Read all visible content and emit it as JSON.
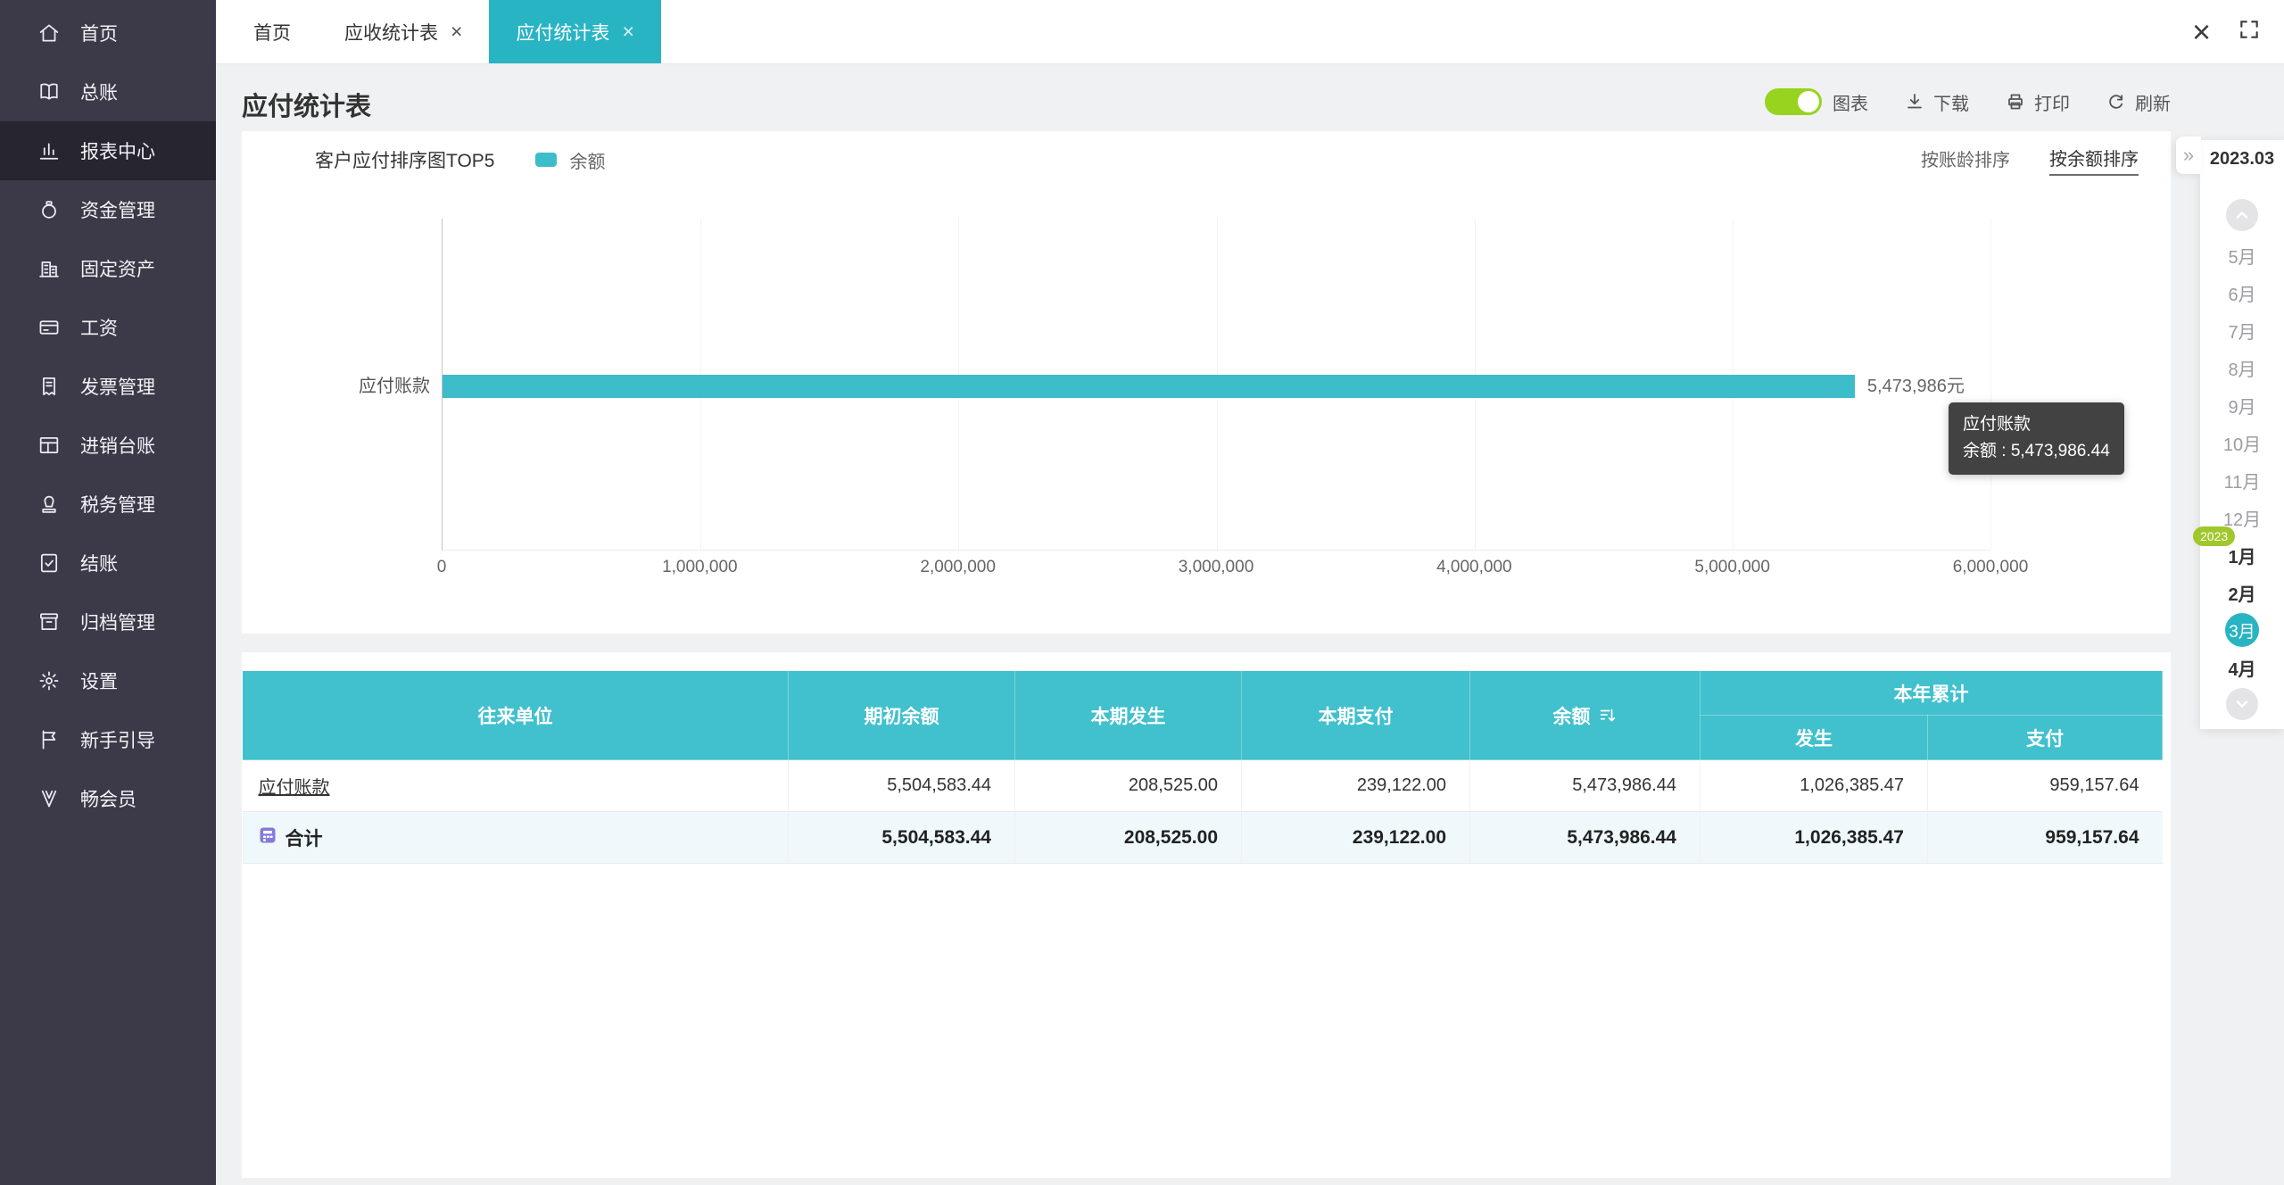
{
  "colors": {
    "accent_teal": "#29b4c4",
    "bar_teal": "#3dbcca",
    "header_teal": "#41c0cd",
    "toggle_green": "#97d31f",
    "sidebar_bg": "#3c3a49",
    "sidebar_active": "#272530",
    "total_row_bg": "#eff8fa",
    "tooltip_bg": "#424242",
    "year_badge_green": "#a0c82c"
  },
  "sidebar": {
    "items": [
      {
        "label": "首页",
        "icon": "home-icon"
      },
      {
        "label": "总账",
        "icon": "general-ledger-icon"
      },
      {
        "label": "报表中心",
        "icon": "report-center-icon",
        "active": true
      },
      {
        "label": "资金管理",
        "icon": "fund-management-icon"
      },
      {
        "label": "固定资产",
        "icon": "fixed-assets-icon"
      },
      {
        "label": "工资",
        "icon": "payroll-icon"
      },
      {
        "label": "发票管理",
        "icon": "invoice-management-icon"
      },
      {
        "label": "进销台账",
        "icon": "purchase-sales-ledger-icon"
      },
      {
        "label": "税务管理",
        "icon": "tax-management-icon"
      },
      {
        "label": "结账",
        "icon": "closing-icon"
      },
      {
        "label": "归档管理",
        "icon": "archive-management-icon"
      },
      {
        "label": "设置",
        "icon": "settings-icon"
      },
      {
        "label": "新手引导",
        "icon": "beginner-guide-icon"
      },
      {
        "label": "畅会员",
        "icon": "membership-icon"
      }
    ]
  },
  "tabbar": {
    "tabs": [
      {
        "label": "首页",
        "closable": false,
        "active": false
      },
      {
        "label": "应收统计表",
        "closable": true,
        "active": false
      },
      {
        "label": "应付统计表",
        "closable": true,
        "active": true
      }
    ],
    "close_glyph": "×",
    "window_close": "×"
  },
  "header": {
    "title": "应付统计表",
    "toggle_label": "图表",
    "download_label": "下载",
    "print_label": "打印",
    "refresh_label": "刷新"
  },
  "chart": {
    "panel_title": "客户应付排序图TOP5",
    "legend_label": "余额",
    "sort_age": "按账龄排序",
    "sort_amount": "按余额排序",
    "category": "应付账款",
    "bar_label": "5,473,986元",
    "tooltip_title": "应付账款",
    "tooltip_value": "余额 : 5,473,986.44"
  },
  "chart_data": {
    "type": "bar",
    "orientation": "horizontal",
    "title": "客户应付排序图TOP5",
    "categories": [
      "应付账款"
    ],
    "series": [
      {
        "name": "余额",
        "values": [
          5473986.44
        ]
      }
    ],
    "values": [
      5473986.44
    ],
    "xlim": [
      0,
      6000000
    ],
    "x_ticks": [
      "0",
      "1,000,000",
      "2,000,000",
      "3,000,000",
      "4,000,000",
      "5,000,000",
      "6,000,000"
    ],
    "bar_color": "#3dbcca",
    "grid": true,
    "legend_position": "top"
  },
  "table": {
    "col_unit": "往来单位",
    "col_begin": "期初余额",
    "col_current": "本期发生",
    "col_pay": "本期支付",
    "col_balance": "余额",
    "col_year": "本年累计",
    "col_year_occur": "发生",
    "col_year_pay": "支付",
    "rows": [
      {
        "unit": "应付账款",
        "begin": "5,504,583.44",
        "current": "208,525.00",
        "pay": "239,122.00",
        "balance": "5,473,986.44",
        "year_occur": "1,026,385.47",
        "year_pay": "959,157.64"
      }
    ],
    "total": {
      "label": "合计",
      "begin": "5,504,583.44",
      "current": "208,525.00",
      "pay": "239,122.00",
      "balance": "5,473,986.44",
      "year_occur": "1,026,385.47",
      "year_pay": "959,157.64"
    }
  },
  "month_panel": {
    "current": "2023.03",
    "collapse": "»",
    "year_badge": "2023",
    "months": [
      {
        "label": "5月"
      },
      {
        "label": "6月"
      },
      {
        "label": "7月"
      },
      {
        "label": "8月"
      },
      {
        "label": "9月"
      },
      {
        "label": "10月"
      },
      {
        "label": "11月"
      },
      {
        "label": "12月"
      },
      {
        "label": "1月",
        "current_year": true
      },
      {
        "label": "2月",
        "current_year": true
      },
      {
        "label": "3月",
        "current_year": true,
        "selected": true
      },
      {
        "label": "4月",
        "current_year": true
      }
    ]
  }
}
